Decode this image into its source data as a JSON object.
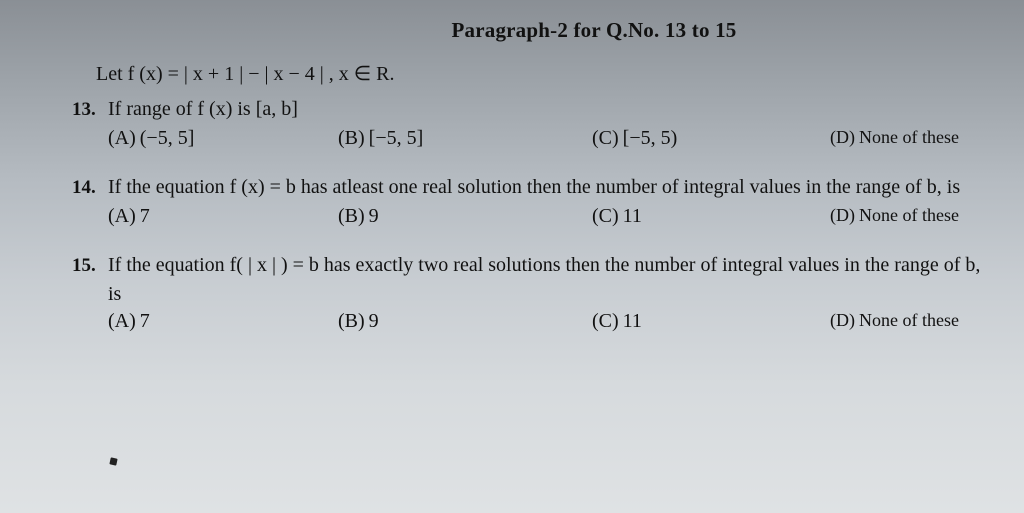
{
  "title": "Paragraph-2 for Q.No. 13 to 15",
  "let_line": "Let  f (x)  =  | x + 1 |  −  | x − 4 | ,  x ∈ R.",
  "q13": {
    "num": "13.",
    "text": "If range of f (x) is [a, b]",
    "A": "(−5, 5]",
    "B": "[−5, 5]",
    "C": "[−5, 5)",
    "D": "None of these"
  },
  "q14": {
    "num": "14.",
    "text": "If the equation  f (x)  =  b  has atleast one real solution then the number of integral values in the range of b, is",
    "A": "7",
    "B": "9",
    "C": "11",
    "D": "None of these"
  },
  "q15": {
    "num": "15.",
    "text": "If the equation f( | x | ) = b  has exactly two real solutions then the number of integral values in the range of  b,",
    "text2": "is",
    "A": "7",
    "B": "9",
    "C": "11",
    "D": "None of these"
  },
  "labels": {
    "A": "(A)",
    "B": "(B)",
    "C": "(C)",
    "D": "(D)"
  }
}
